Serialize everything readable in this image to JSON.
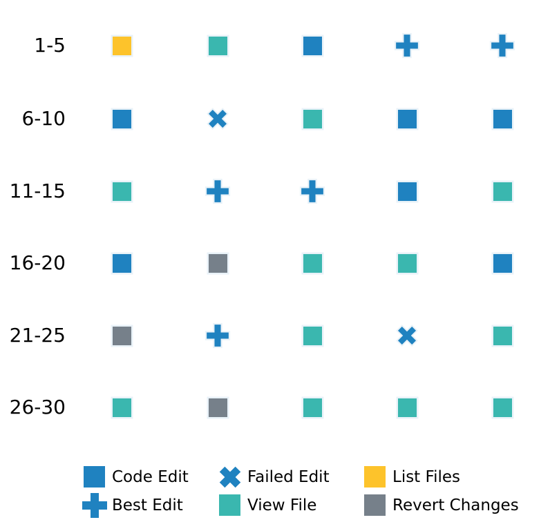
{
  "chart_data": {
    "type": "scatter",
    "title": "",
    "xlabel": "",
    "ylabel": "",
    "axes_visible": false,
    "grid": false,
    "legend_position": "bottom",
    "legend_columns": 3,
    "y_categories": [
      "1-5",
      "6-10",
      "11-15",
      "16-20",
      "21-25",
      "26-30"
    ],
    "x_positions": [
      1,
      2,
      3,
      4,
      5
    ],
    "matrix": [
      [
        "list_files",
        "view_file",
        "code_edit",
        "best_edit",
        "best_edit"
      ],
      [
        "code_edit",
        "failed_edit",
        "view_file",
        "code_edit",
        "code_edit"
      ],
      [
        "view_file",
        "best_edit",
        "best_edit",
        "code_edit",
        "view_file"
      ],
      [
        "code_edit",
        "revert_changes",
        "view_file",
        "view_file",
        "code_edit"
      ],
      [
        "revert_changes",
        "best_edit",
        "view_file",
        "failed_edit",
        "view_file"
      ],
      [
        "view_file",
        "revert_changes",
        "view_file",
        "view_file",
        "view_file"
      ]
    ]
  },
  "markers": {
    "code_edit": {
      "label": "Code Edit",
      "shape": "square",
      "color": "#1f82c0"
    },
    "failed_edit": {
      "label": "Failed Edit",
      "shape": "x",
      "color": "#1f82c0"
    },
    "list_files": {
      "label": "List Files",
      "shape": "square",
      "color": "#fdc32b"
    },
    "best_edit": {
      "label": "Best Edit",
      "shape": "plus",
      "color": "#1f82c0"
    },
    "view_file": {
      "label": "View File",
      "shape": "square",
      "color": "#3ab7af"
    },
    "revert_changes": {
      "label": "Revert Changes",
      "shape": "square",
      "color": "#76808a"
    }
  },
  "legend_order": [
    [
      "code_edit",
      "failed_edit",
      "list_files"
    ],
    [
      "best_edit",
      "view_file",
      "revert_changes"
    ]
  ],
  "colors": {
    "background": "#ffffff",
    "text": "#000000",
    "marker_halo": "#e9f2f8"
  }
}
